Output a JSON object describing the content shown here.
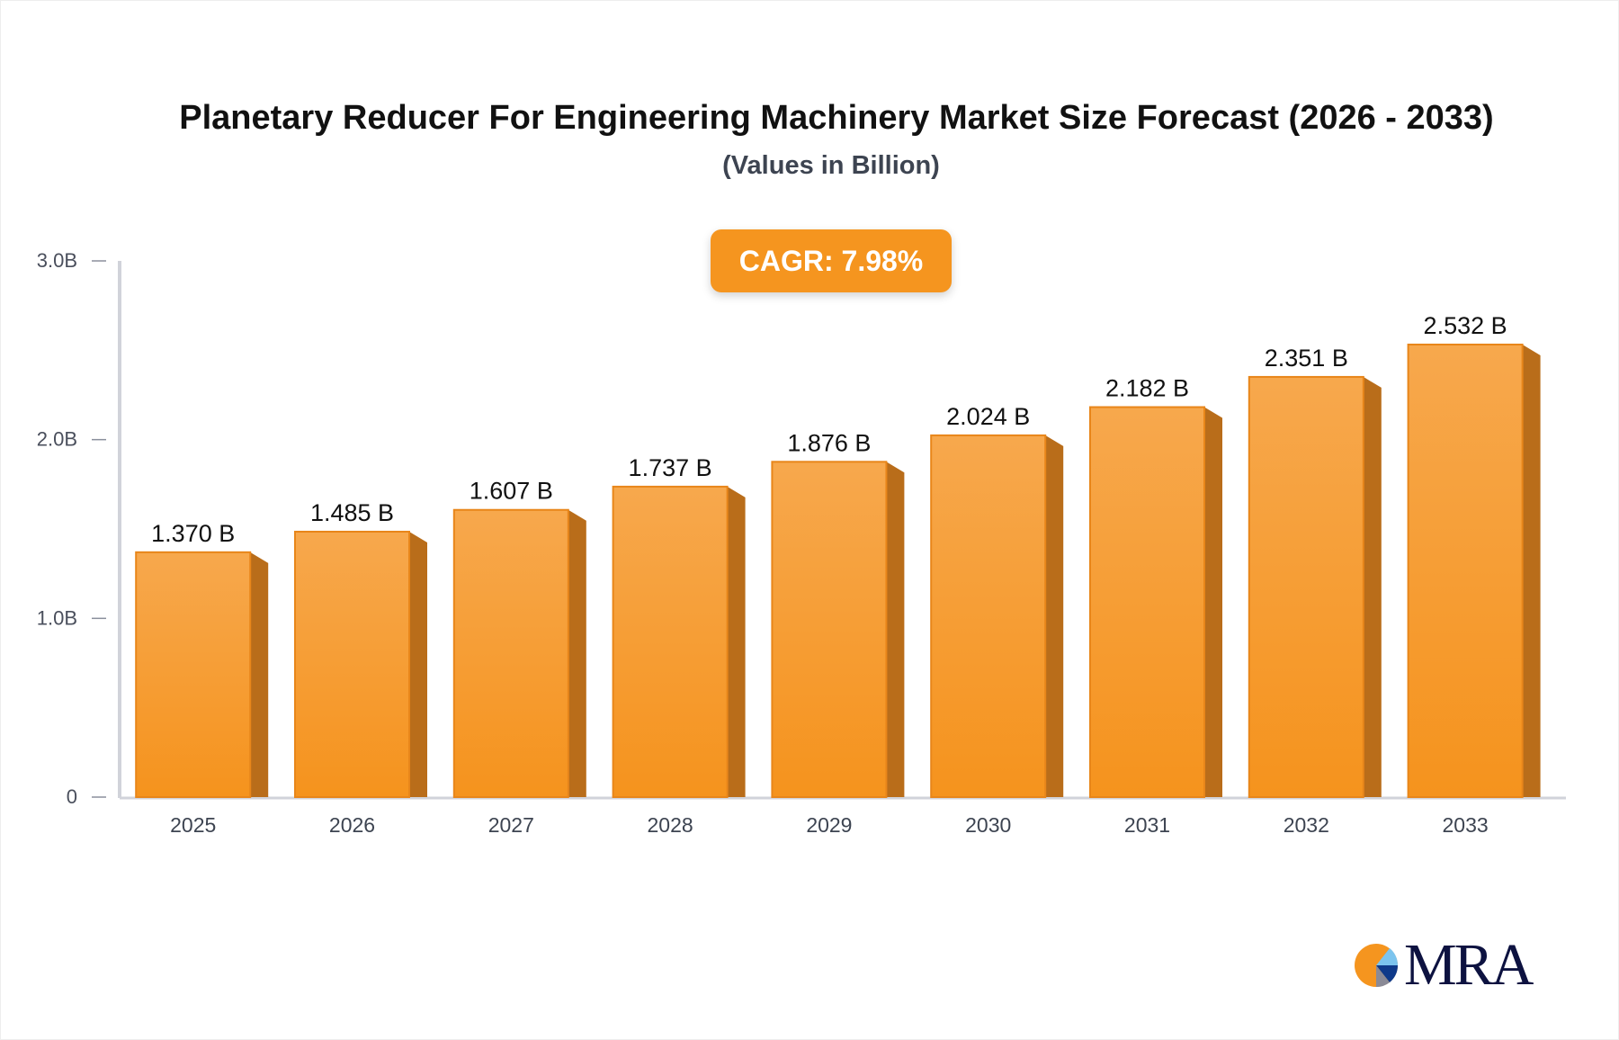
{
  "chart_data": {
    "type": "bar",
    "title": "Planetary Reducer For Engineering Machinery Market Size Forecast (2026 - 2033)",
    "subtitle": "(Values in Billion)",
    "annotation": "CAGR: 7.98%",
    "categories": [
      "2025",
      "2026",
      "2027",
      "2028",
      "2029",
      "2030",
      "2031",
      "2032",
      "2033"
    ],
    "values": [
      1.37,
      1.485,
      1.607,
      1.737,
      1.876,
      2.024,
      2.182,
      2.351,
      2.532
    ],
    "data_labels": [
      "1.370 B",
      "1.485 B",
      "1.607 B",
      "1.737 B",
      "1.876 B",
      "2.024 B",
      "2.182 B",
      "2.351 B",
      "2.532 B"
    ],
    "yticks": [
      0,
      1,
      2,
      3
    ],
    "ytick_labels": [
      "0",
      "1.0B",
      "2.0B",
      "3.0B"
    ],
    "ylim": [
      0,
      3
    ],
    "xlabel": "",
    "ylabel": "",
    "grid": false,
    "colors": {
      "bar_top": "#f7a64a",
      "bar_bottom": "#f5951f",
      "bar_side": "#b96d1a",
      "axis": "#d1d3da",
      "badge": "#f5951f"
    }
  },
  "logo": {
    "text": "MRA"
  }
}
